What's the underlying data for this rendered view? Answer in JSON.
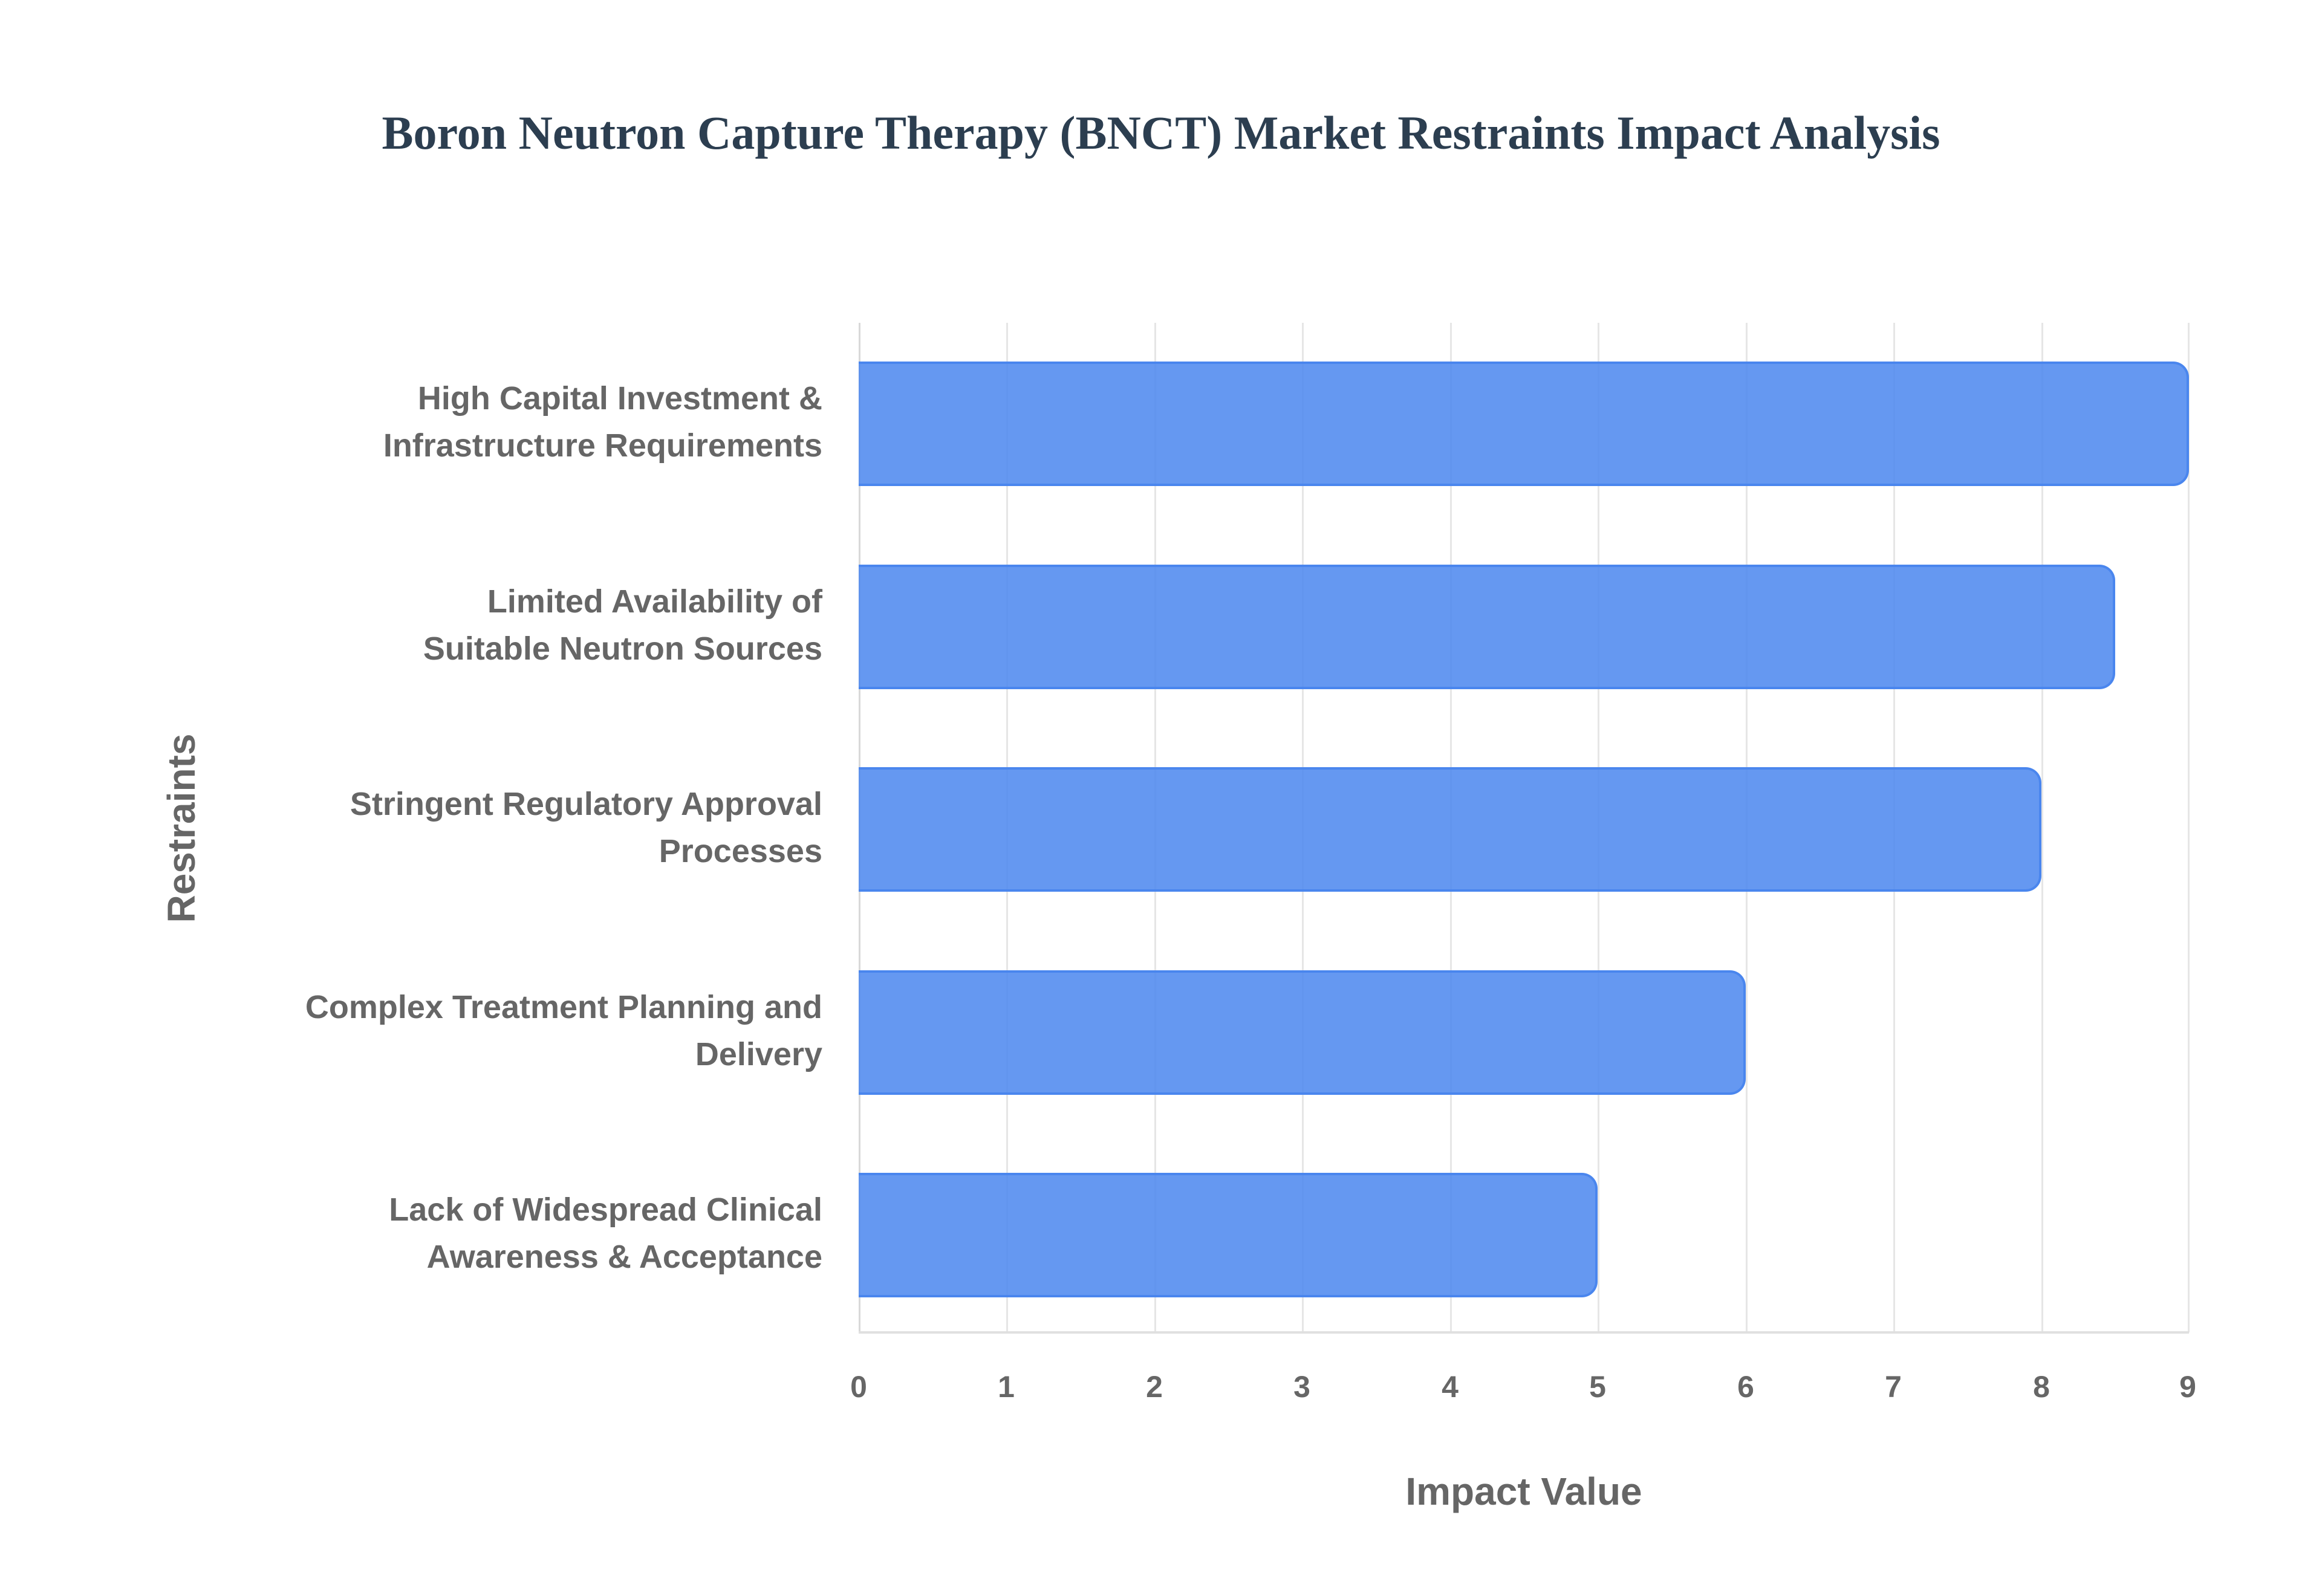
{
  "chart_data": {
    "type": "bar",
    "orientation": "horizontal",
    "title": "Boron Neutron Capture Therapy (BNCT) Market Restraints Impact Analysis",
    "xlabel": "Impact Value",
    "ylabel": "Restraints",
    "categories": [
      "High Capital Investment & Infrastructure Requirements",
      "Limited Availability of Suitable Neutron Sources",
      "Stringent Regulatory Approval Processes",
      "Complex Treatment Planning and Delivery",
      "Lack of Widespread Clinical Awareness & Acceptance"
    ],
    "values": [
      9,
      8.5,
      8,
      6,
      5
    ],
    "xlim": [
      0,
      9
    ],
    "xticks": [
      "0",
      "1",
      "2",
      "3",
      "4",
      "5",
      "6",
      "7",
      "8",
      "9"
    ],
    "grid": true,
    "legend": null,
    "bar_color": "#4a86ee"
  },
  "labels": {
    "cat0_line1": "High Capital Investment &",
    "cat0_line2": "Infrastructure Requirements",
    "cat1_line1": "Limited Availability of",
    "cat1_line2": "Suitable Neutron Sources",
    "cat2_line1": "Stringent Regulatory Approval",
    "cat2_line2": "Processes",
    "cat3_line1": "Complex Treatment Planning and",
    "cat3_line2": "Delivery",
    "cat4_line1": "Lack of Widespread Clinical",
    "cat4_line2": "Awareness & Acceptance"
  }
}
